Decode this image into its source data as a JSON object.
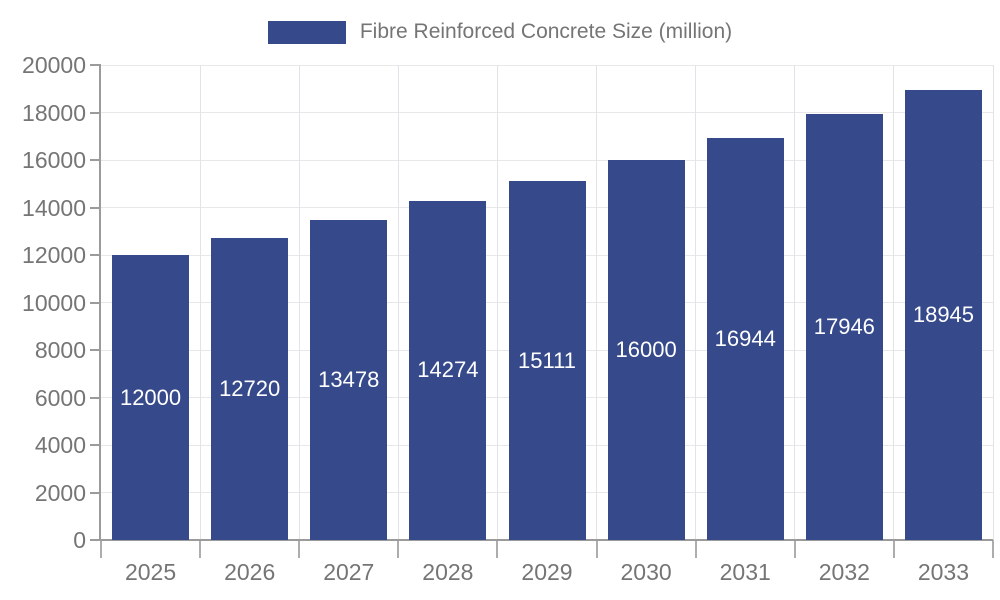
{
  "chart_data": {
    "type": "bar",
    "legend": "Fibre Reinforced Concrete Size (million)",
    "legend_position": "top",
    "categories": [
      "2025",
      "2026",
      "2027",
      "2028",
      "2029",
      "2030",
      "2031",
      "2032",
      "2033"
    ],
    "values": [
      12000,
      12720,
      13478,
      14274,
      15111,
      16000,
      16944,
      17946,
      18945
    ],
    "xlabel": "",
    "ylabel": "",
    "ylim": [
      0,
      20000
    ],
    "ytick_step": 2000,
    "yticks": [
      "0",
      "2000",
      "4000",
      "6000",
      "8000",
      "10000",
      "12000",
      "14000",
      "16000",
      "18000",
      "20000"
    ],
    "grid": true,
    "bar_labels_inside": true,
    "colors": {
      "bar": "#364A8B",
      "axis": "#9B9B9B",
      "grid_h": "#E8E8E8",
      "grid_v": "#E2E2E9",
      "tick_label": "#757575",
      "bar_label": "#FFFFFF"
    }
  }
}
